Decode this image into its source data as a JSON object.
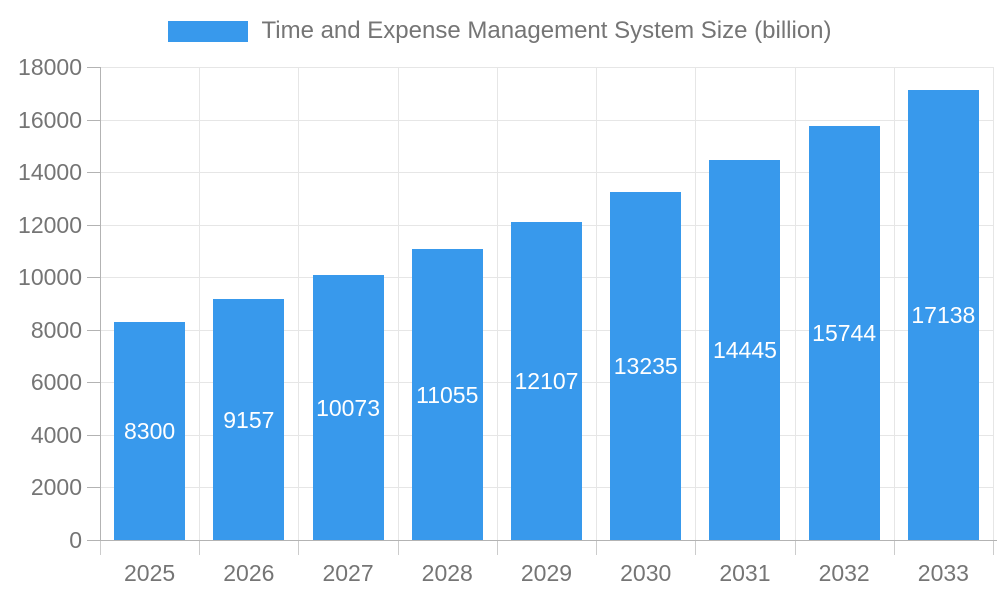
{
  "legend": {
    "label": "Time and Expense Management System Size (billion)"
  },
  "chart_data": {
    "type": "bar",
    "title": "Time and Expense Management System Size (billion)",
    "categories": [
      "2025",
      "2026",
      "2027",
      "2028",
      "2029",
      "2030",
      "2031",
      "2032",
      "2033"
    ],
    "series": [
      {
        "name": "Time and Expense Management System Size (billion)",
        "values": [
          8300,
          9157,
          10073,
          11055,
          12107,
          13235,
          14445,
          15744,
          17138
        ]
      }
    ],
    "value_labels": [
      "8300",
      "9157",
      "10073",
      "11055",
      "12107",
      "13235",
      "14445",
      "15744",
      "17138"
    ],
    "xlabel": "",
    "ylabel": "",
    "ylim": [
      0,
      18000
    ],
    "ytick_step": 2000,
    "yticks": [
      "0",
      "2000",
      "4000",
      "6000",
      "8000",
      "10000",
      "12000",
      "14000",
      "16000",
      "18000"
    ],
    "grid": true,
    "legend_position": "top",
    "colors": {
      "bar": "#3899ec",
      "value_label": "#ffffff",
      "axis": "#b3b3b3",
      "grid": "#e6e6e6",
      "tick": "#cccccc",
      "text": "#757575"
    }
  }
}
